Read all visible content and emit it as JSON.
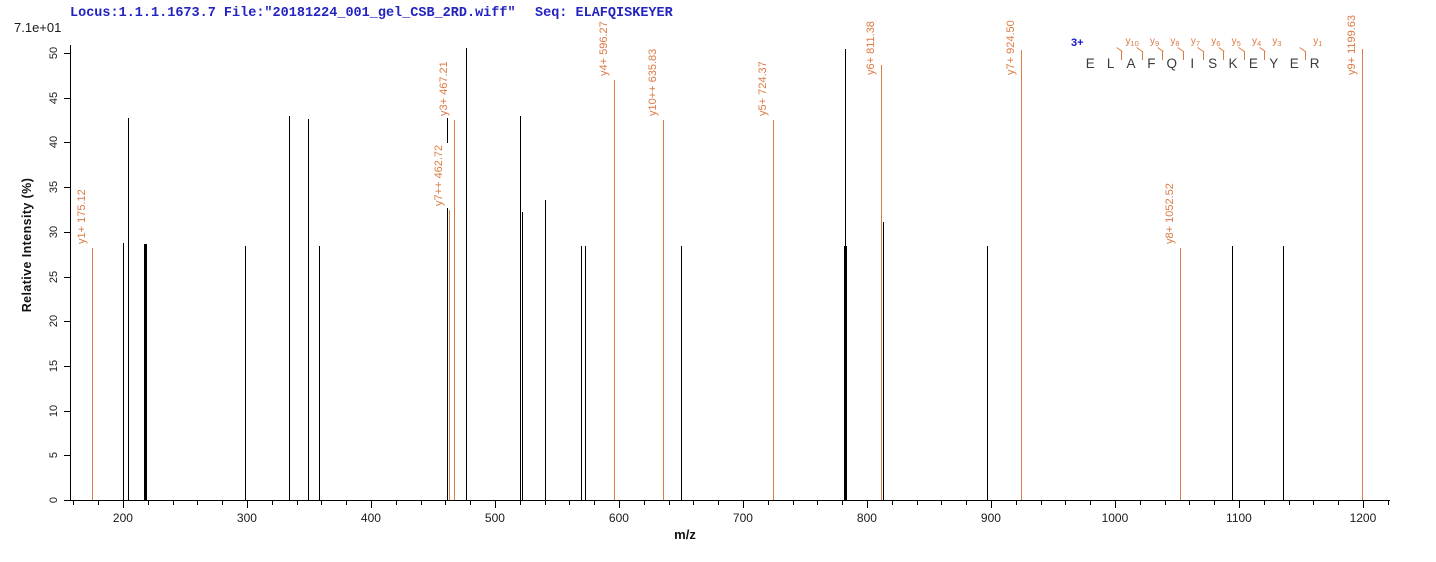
{
  "header": {
    "locus_file": "Locus:1.1.1.1673.7 File:\"20181224_001_gel_CSB_2RD.wiff\"",
    "seq": "Seq: ELAFQISKEYER"
  },
  "chart_data": {
    "type": "bar",
    "title": "MS/MS fragment spectrum",
    "xlabel": "m/z",
    "ylabel": "Relative  Intensity (%)",
    "base_peak_intensity": "7.1e+01",
    "xlim": [
      158,
      1222
    ],
    "ylim": [
      0,
      50
    ],
    "x_major_ticks": [
      200,
      300,
      400,
      500,
      600,
      700,
      800,
      900,
      1000,
      1100,
      1200
    ],
    "x_minor_tick_step": 20,
    "y_ticks": [
      0,
      5,
      10,
      15,
      20,
      25,
      30,
      35,
      40,
      45,
      50
    ],
    "legend": "none",
    "grid": false,
    "series": [
      {
        "name": "matched_y_ions",
        "color": "#dd7b45",
        "points": [
          {
            "label": "y1+ 175.12",
            "mz": 175.12,
            "intensity": 28.2
          },
          {
            "label": "y7++ 462.72",
            "mz": 462.72,
            "intensity": 32.4
          },
          {
            "label": "y3+ 467.21",
            "mz": 467.21,
            "intensity": 42.5
          },
          {
            "label": "y4+ 596.27",
            "mz": 596.27,
            "intensity": 47.0
          },
          {
            "label": "y10++ 635.83",
            "mz": 635.83,
            "intensity": 42.5
          },
          {
            "label": "y5+ 724.37",
            "mz": 724.37,
            "intensity": 42.5
          },
          {
            "label": "y6+ 811.38",
            "mz": 811.38,
            "intensity": 48.7
          },
          {
            "label": "y7+ 924.50",
            "mz": 924.5,
            "intensity": 50.3
          },
          {
            "label": "y8+ 1052.52",
            "mz": 1052.52,
            "intensity": 28.2
          },
          {
            "label": "y9+ 1199.63",
            "mz": 1199.63,
            "intensity": 50.4
          }
        ]
      },
      {
        "name": "unmatched_peaks",
        "color": "#000000",
        "points": [
          {
            "mz": 200.1,
            "intensity": 28.7
          },
          {
            "mz": 204.4,
            "intensity": 42.7
          },
          {
            "mz": 217.6,
            "intensity": 28.6,
            "w": 3
          },
          {
            "mz": 298.4,
            "intensity": 28.4
          },
          {
            "mz": 333.8,
            "intensity": 42.9
          },
          {
            "mz": 348.9,
            "intensity": 42.6
          },
          {
            "mz": 358.2,
            "intensity": 28.4
          },
          {
            "mz": 461.0,
            "intensity": 46.6
          },
          {
            "mz": 477.0,
            "intensity": 50.6
          },
          {
            "mz": 520.2,
            "intensity": 42.9
          },
          {
            "mz": 521.8,
            "intensity": 32.2
          },
          {
            "mz": 540.3,
            "intensity": 33.6
          },
          {
            "mz": 569.4,
            "intensity": 28.4
          },
          {
            "mz": 572.6,
            "intensity": 28.4
          },
          {
            "mz": 650.0,
            "intensity": 28.4
          },
          {
            "mz": 782.3,
            "intensity": 50.5
          },
          {
            "mz": 782.5,
            "intensity": 28.4,
            "w": 3
          },
          {
            "mz": 812.6,
            "intensity": 31.1
          },
          {
            "mz": 896.5,
            "intensity": 28.4
          },
          {
            "mz": 1094.6,
            "intensity": 28.4
          },
          {
            "mz": 1135.7,
            "intensity": 28.4
          }
        ]
      }
    ]
  },
  "sequence_display": {
    "charge_label": "3+",
    "residues": [
      "E",
      "L",
      "A",
      "F",
      "Q",
      "I",
      "S",
      "K",
      "E",
      "Y",
      "E",
      "R"
    ],
    "fragment_markers": [
      {
        "ion": "y",
        "sub": "10",
        "before_residue_index": 2
      },
      {
        "ion": "y",
        "sub": "9",
        "before_residue_index": 3
      },
      {
        "ion": "y",
        "sub": "8",
        "before_residue_index": 4
      },
      {
        "ion": "y",
        "sub": "7",
        "before_residue_index": 5
      },
      {
        "ion": "y",
        "sub": "6",
        "before_residue_index": 6
      },
      {
        "ion": "y",
        "sub": "5",
        "before_residue_index": 7
      },
      {
        "ion": "y",
        "sub": "4",
        "before_residue_index": 8
      },
      {
        "ion": "y",
        "sub": "3",
        "before_residue_index": 9
      },
      {
        "ion": "y",
        "sub": "1",
        "before_residue_index": 11
      }
    ]
  },
  "colors": {
    "header_text": "#2323c0",
    "ion": "#dd7b45",
    "peak": "#000000",
    "charge": "#1414cc",
    "residue": "#3c3c3c",
    "axis": "#000000"
  }
}
